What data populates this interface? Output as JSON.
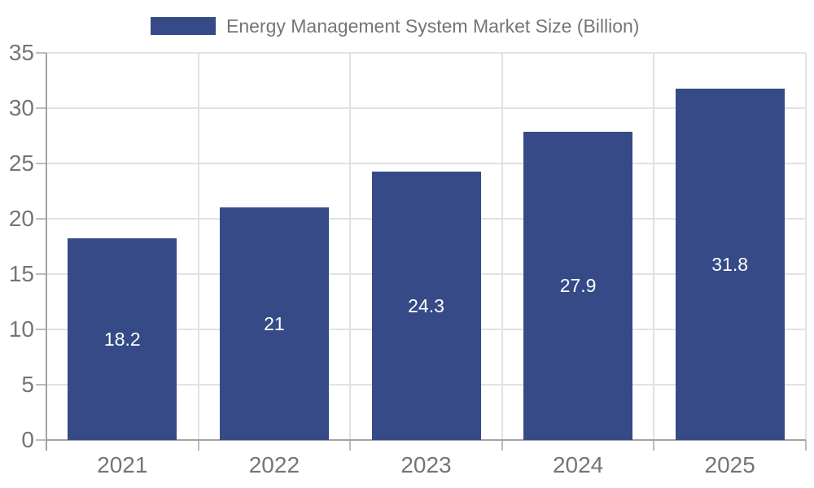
{
  "legend": {
    "label": "Energy Management System Market Size (Billion)"
  },
  "chart_data": {
    "type": "bar",
    "title": "Energy Management System Market Size (Billion)",
    "categories": [
      "2021",
      "2022",
      "2023",
      "2024",
      "2025"
    ],
    "series": [
      {
        "name": "Energy Management System Market Size (Billion)",
        "values": [
          18.2,
          21,
          24.3,
          27.9,
          31.8
        ]
      }
    ],
    "value_labels": [
      "18.2",
      "21",
      "24.3",
      "27.9",
      "31.8"
    ],
    "xlabel": "",
    "ylabel": "",
    "ylim": [
      0,
      35
    ],
    "yticks": [
      0,
      5,
      10,
      15,
      20,
      25,
      30,
      35
    ],
    "grid": true,
    "legend_position": "top",
    "colors": {
      "bar": "#364a87",
      "value_label_text": "#ffffff",
      "axis_text": "#757575",
      "grid_line": "#e2e2e2",
      "axis_line": "#a3a3a3",
      "tick_line": "#bcbcbc"
    }
  }
}
